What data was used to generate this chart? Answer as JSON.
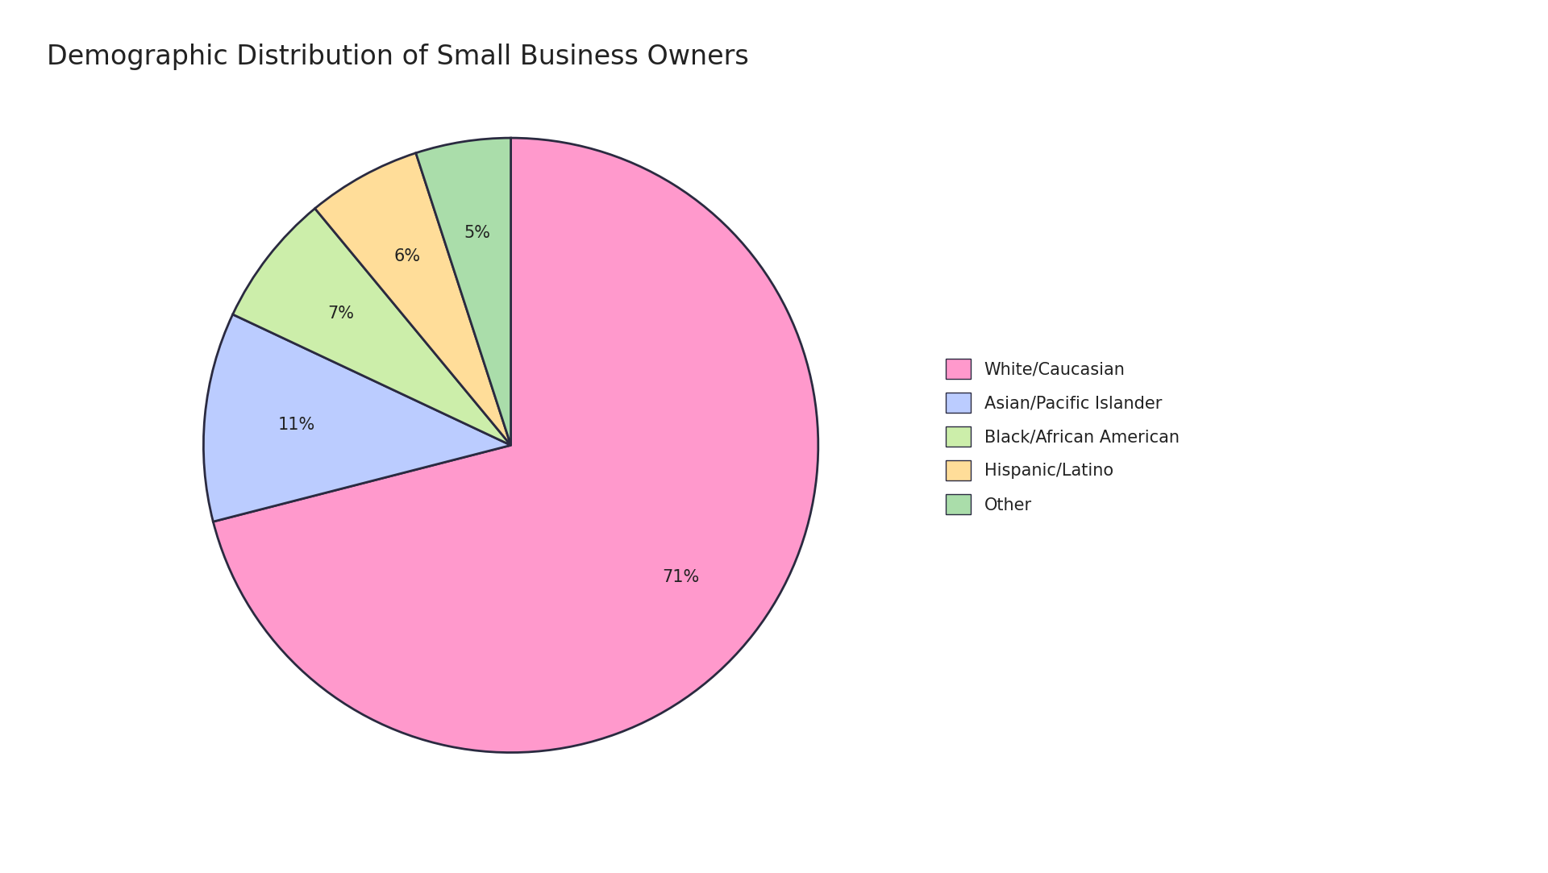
{
  "title": "Demographic Distribution of Small Business Owners",
  "labels": [
    "White/Caucasian",
    "Asian/Pacific Islander",
    "Black/African American",
    "Hispanic/Latino",
    "Other"
  ],
  "values": [
    71,
    11,
    7,
    6,
    5
  ],
  "colors": [
    "#FF99CC",
    "#BBCCFF",
    "#CCEEAA",
    "#FFDD99",
    "#AADDAA"
  ],
  "edge_color": "#2a2a40",
  "background_color": "#FFFFFF",
  "title_fontsize": 24,
  "pct_fontsize": 15,
  "legend_fontsize": 15,
  "startangle": 90,
  "pct_distance": 0.7
}
